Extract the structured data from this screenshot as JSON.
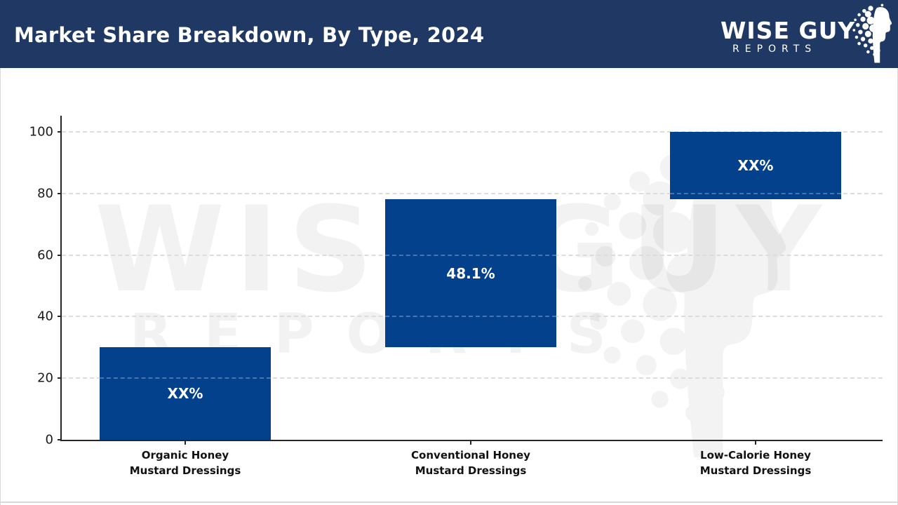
{
  "header": {
    "title": "Market Share Breakdown, By Type, 2024",
    "bg_color": "#1f3864",
    "logo_line1": "WISE GUY",
    "logo_line2": "REPORTS"
  },
  "watermark": {
    "line1": "WISE GUY",
    "line2": "REPORTS"
  },
  "chart_data": {
    "type": "bar",
    "variant": "floating-segment-breakdown",
    "title": "Market Share Breakdown, By Type, 2024",
    "categories": [
      "Organic Honey\nMustard Dressings",
      "Conventional Honey\nMustard Dressings",
      "Low-Calorie Honey\nMustard Dressings"
    ],
    "series": [
      {
        "category": "Organic Honey Mustard Dressings",
        "segment_start": 0,
        "segment_end": 30,
        "value": 30,
        "data_label": "XX%"
      },
      {
        "category": "Conventional Honey Mustard Dressings",
        "segment_start": 30,
        "segment_end": 78.1,
        "value": 48.1,
        "data_label": "48.1%"
      },
      {
        "category": "Low-Calorie Honey Mustard Dressings",
        "segment_start": 78.1,
        "segment_end": 100,
        "value": 21.9,
        "data_label": "XX%"
      }
    ],
    "xlabel": "",
    "ylabel": "",
    "ylim": [
      0,
      100
    ],
    "yticks": [
      0,
      20,
      40,
      60,
      80,
      100
    ],
    "grid": {
      "axis": "y",
      "style": "dashed",
      "color": "#dcdcdc"
    },
    "legend": null,
    "bar_color": "#04418c",
    "bar_label_color": "#ffffff",
    "axis_color": "#262626",
    "tick_label_color": "#1a1a1a"
  }
}
